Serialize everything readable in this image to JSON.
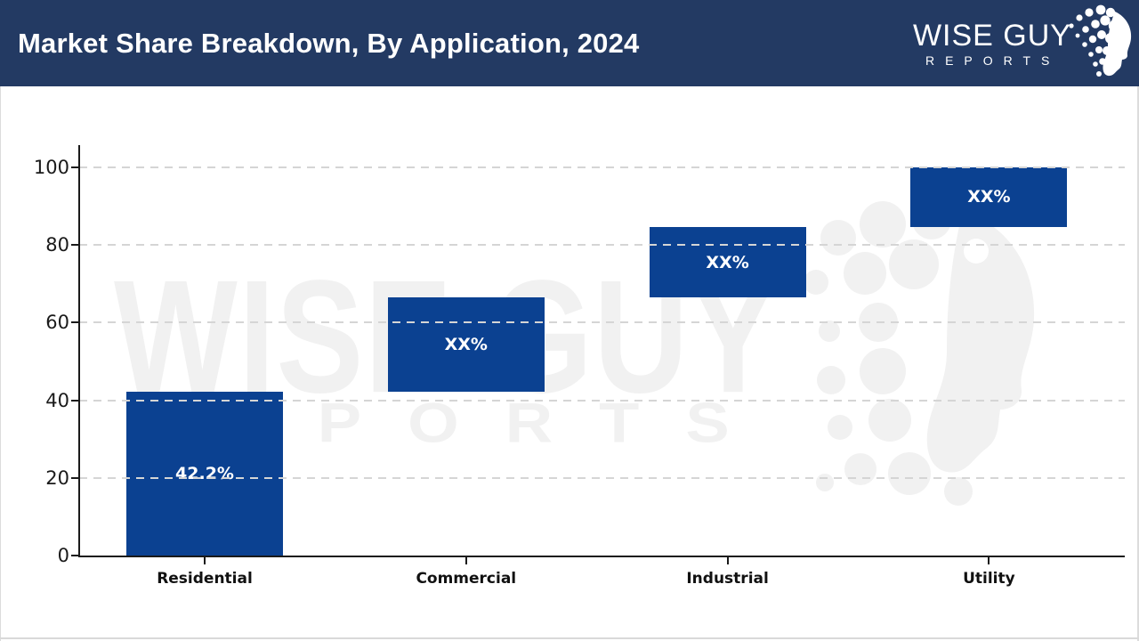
{
  "header": {
    "title": "Market Share Breakdown, By Application, 2024",
    "logo": {
      "line1": "WISE GUY",
      "line2": "REPORTS"
    }
  },
  "watermark": {
    "line1": "WISE GUY",
    "line2": "REPORTS"
  },
  "chart_data": {
    "type": "bar",
    "subtype": "waterfall-breakdown",
    "title": "Market Share Breakdown, By Application, 2024",
    "categories": [
      "Residential",
      "Commercial",
      "Industrial",
      "Utility"
    ],
    "bars": [
      {
        "category": "Residential",
        "start": 0,
        "end": 42.2,
        "label": "42.2%"
      },
      {
        "category": "Commercial",
        "start": 42.2,
        "end": 66.4,
        "label": "XX%"
      },
      {
        "category": "Industrial",
        "start": 66.4,
        "end": 84.7,
        "label": "XX%"
      },
      {
        "category": "Utility",
        "start": 84.7,
        "end": 100,
        "label": "XX%"
      }
    ],
    "bar_color": "#0b4191",
    "label_color": "#ffffff",
    "y_ticks": [
      0,
      20,
      40,
      60,
      80,
      100
    ],
    "ylim": [
      0,
      105
    ],
    "xlabel": "",
    "ylabel": "",
    "grid": "horizontal dashed gridlines drawn over bars",
    "legend": "none"
  }
}
